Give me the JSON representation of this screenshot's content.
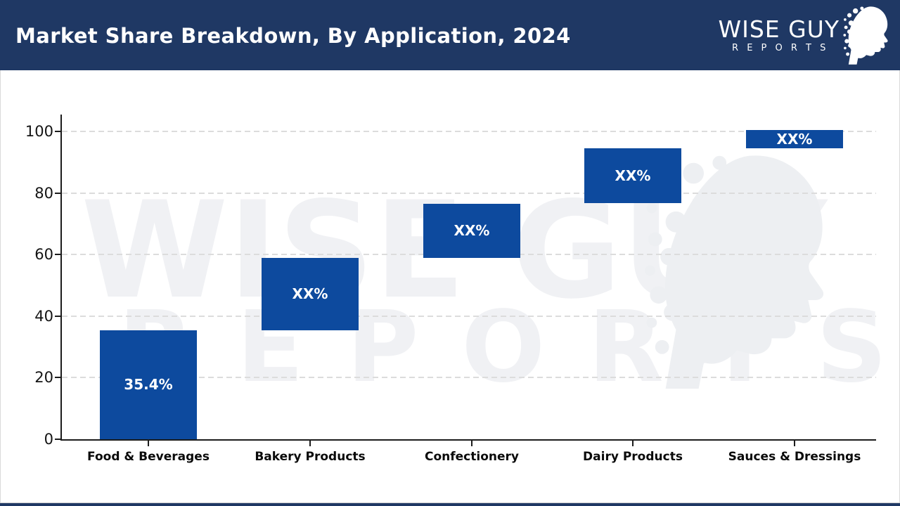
{
  "header": {
    "title": "Market Share Breakdown, By Application, 2024",
    "logo": {
      "name": "WISE GUY",
      "tagline": "R E P O R T S"
    }
  },
  "watermark": {
    "line1": "WISE GUY",
    "line2": "R E P O R T S"
  },
  "chart_data": {
    "type": "bar",
    "variant": "waterfall",
    "title": "Market Share Breakdown, By Application, 2024",
    "categories": [
      "Food & Beverages",
      "Bakery Products",
      "Confectionery",
      "Dairy Products",
      "Sauces & Dressings"
    ],
    "bars": [
      {
        "category": "Food & Beverages",
        "start": 0,
        "end": 35.4,
        "label": "35.4%"
      },
      {
        "category": "Bakery Products",
        "start": 35.4,
        "end": 59.0,
        "label": "XX%"
      },
      {
        "category": "Confectionery",
        "start": 59.0,
        "end": 76.5,
        "label": "XX%"
      },
      {
        "category": "Dairy Products",
        "start": 76.8,
        "end": 94.6,
        "label": "XX%"
      },
      {
        "category": "Sauces & Dressings",
        "start": 94.6,
        "end": 100.5,
        "label": "XX%"
      }
    ],
    "yticks": [
      0,
      20,
      40,
      60,
      80,
      100
    ],
    "ylim": [
      0,
      105.5
    ],
    "xlabel": "",
    "ylabel": "",
    "grid": "horizontal-dashed",
    "legend": null,
    "bar_color": "#0d4a9e",
    "bar_label_color": "#ffffff"
  },
  "colors": {
    "header_bg": "#1f3864",
    "footer_bg": "#1f3864",
    "bar": "#0d4a9e",
    "watermark": "#f0f1f4",
    "grid": "#dcdcdc",
    "axis": "#1c1c1c"
  }
}
